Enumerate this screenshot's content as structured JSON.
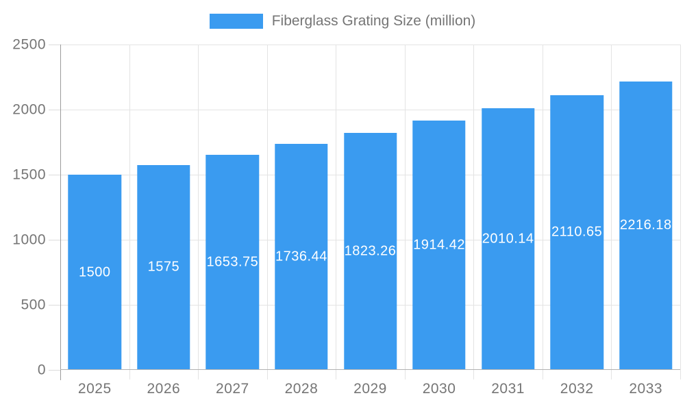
{
  "chart_data": {
    "type": "bar",
    "title": "",
    "categories": [
      "2025",
      "2026",
      "2027",
      "2028",
      "2029",
      "2030",
      "2031",
      "2032",
      "2033"
    ],
    "series": [
      {
        "name": "Fiberglass Grating Size (million)",
        "values": [
          1500,
          1575,
          1653.75,
          1736.44,
          1823.26,
          1914.42,
          2010.14,
          2110.65,
          2216.18
        ],
        "labels": [
          "1500",
          "1575",
          "1653.75",
          "1736.44",
          "1823.26",
          "1914.42",
          "2010.14",
          "2110.65",
          "2216.18"
        ],
        "color": "#3A9BF0"
      }
    ],
    "xlabel": "",
    "ylabel": "",
    "ylim": [
      0,
      2500
    ],
    "yticks": [
      0,
      500,
      1000,
      1500,
      2000,
      2500
    ],
    "grid": true,
    "legend_position": "top",
    "value_label_position": "inside-center",
    "value_label_color": "#ffffff",
    "axis_text_color": "#757575",
    "gridline_color": "#e3e3e3",
    "background_color": "#ffffff"
  }
}
